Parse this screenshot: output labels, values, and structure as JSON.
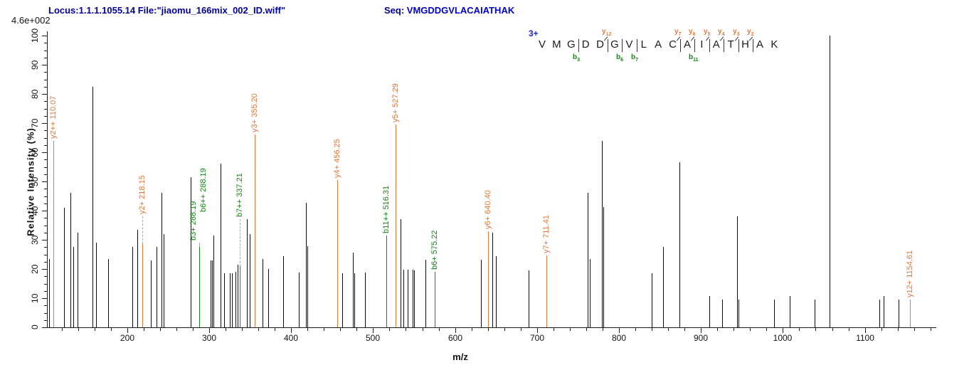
{
  "header": {
    "locus_file": "Locus:1.1.1.1055.14 File:\"jiaomu_166mix_002_ID.wiff\"",
    "seq_label": "Seq: ",
    "sequence": "VMGDDGVLACAIATHAK",
    "intensity_scale": "4.6e+002"
  },
  "axes": {
    "y_label": "Relative  Intensity  (%)",
    "x_label": "m/z",
    "y_ticks": [
      0,
      10,
      20,
      30,
      40,
      50,
      60,
      70,
      80,
      90,
      100
    ],
    "y_minor_step": 2.5,
    "x_ticks": [
      200,
      300,
      400,
      500,
      600,
      700,
      800,
      900,
      1000,
      1100
    ],
    "x_minor_step": 20,
    "x_min": 100,
    "x_max": 1186,
    "y_min": 0,
    "y_max": 100
  },
  "colors": {
    "y_ion": "#e0783c",
    "b_ion": "#168416",
    "peak": "#0d0d0d",
    "leader": "#a8a8a8",
    "header_blue": "#000099",
    "sequence_blue": "#0000cc",
    "charge_blue": "#2222cc"
  },
  "annotation": {
    "charge": "3+",
    "residues": "VMGDDGVLACAIATHAK",
    "y_fragments": [
      {
        "ion": "y",
        "sub": "12",
        "boundary": 5
      },
      {
        "ion": "y",
        "sub": "7",
        "boundary": 10
      },
      {
        "ion": "y",
        "sub": "6",
        "boundary": 11
      },
      {
        "ion": "y",
        "sub": "5",
        "boundary": 12
      },
      {
        "ion": "y",
        "sub": "4",
        "boundary": 13
      },
      {
        "ion": "y",
        "sub": "3",
        "boundary": 14
      },
      {
        "ion": "y",
        "sub": "2",
        "boundary": 15
      }
    ],
    "b_fragments": [
      {
        "ion": "b",
        "sub": "3",
        "boundary": 3
      },
      {
        "ion": "b",
        "sub": "6",
        "boundary": 6
      },
      {
        "ion": "b",
        "sub": "7",
        "boundary": 7
      },
      {
        "ion": "b",
        "sub": "11",
        "boundary": 11
      }
    ]
  },
  "chart_data": {
    "type": "bar",
    "subtype": "ms2-stick-spectrum",
    "xlabel": "m/z",
    "ylabel": "Relative Intensity (%)",
    "xlim": [
      100,
      1186
    ],
    "ylim": [
      0,
      100
    ],
    "grid": false,
    "max_intensity_label": "4.6e+002",
    "peaks": [
      {
        "mz": 105,
        "i": 23.5
      },
      {
        "mz": 110.07,
        "i": 64,
        "ion": "y",
        "label": "y2++ 110.07"
      },
      {
        "mz": 123,
        "i": 41
      },
      {
        "mz": 131,
        "i": 46
      },
      {
        "mz": 134,
        "i": 27.5
      },
      {
        "mz": 139,
        "i": 32.5
      },
      {
        "mz": 158,
        "i": 82.5
      },
      {
        "mz": 162,
        "i": 29
      },
      {
        "mz": 177,
        "i": 23.5
      },
      {
        "mz": 206,
        "i": 27.5
      },
      {
        "mz": 212,
        "i": 33.5
      },
      {
        "mz": 218.15,
        "i": 28.5,
        "ion": "y",
        "label": "y2+ 218.15",
        "label_from": 38
      },
      {
        "mz": 229,
        "i": 23
      },
      {
        "mz": 236,
        "i": 27.5
      },
      {
        "mz": 242,
        "i": 46
      },
      {
        "mz": 244.5,
        "i": 32
      },
      {
        "mz": 277,
        "i": 51.5
      },
      {
        "mz": 288.19,
        "i": 27.5,
        "ion": "b",
        "label": "b3+ 288.19",
        "label2": "b6++ 288.19",
        "label_from": 29
      },
      {
        "mz": 302,
        "i": 23
      },
      {
        "mz": 303.5,
        "i": 23
      },
      {
        "mz": 305.5,
        "i": 31.5
      },
      {
        "mz": 313.5,
        "i": 56
      },
      {
        "mz": 318,
        "i": 18.5
      },
      {
        "mz": 325,
        "i": 18.5
      },
      {
        "mz": 328,
        "i": 18.5
      },
      {
        "mz": 332,
        "i": 19
      },
      {
        "mz": 335,
        "i": 21.5
      },
      {
        "mz": 337.21,
        "i": 21,
        "ion": "b",
        "label": "b7++ 337.21",
        "label_from": 37
      },
      {
        "mz": 346,
        "i": 37
      },
      {
        "mz": 349.5,
        "i": 32
      },
      {
        "mz": 355.2,
        "i": 66,
        "ion": "y",
        "label": "y3+ 355.20"
      },
      {
        "mz": 365,
        "i": 23.5
      },
      {
        "mz": 372,
        "i": 20
      },
      {
        "mz": 390,
        "i": 24.5
      },
      {
        "mz": 409,
        "i": 18.7
      },
      {
        "mz": 418,
        "i": 42.7
      },
      {
        "mz": 419.5,
        "i": 27.7
      },
      {
        "mz": 456.25,
        "i": 50.5,
        "ion": "y",
        "label": "y4+ 456.25"
      },
      {
        "mz": 462,
        "i": 18.6
      },
      {
        "mz": 475,
        "i": 25.6
      },
      {
        "mz": 477,
        "i": 18.6
      },
      {
        "mz": 490,
        "i": 18.8
      },
      {
        "mz": 516.31,
        "i": 31.5,
        "ion": "b",
        "label": "b11++ 516.31"
      },
      {
        "mz": 527.29,
        "i": 69.5,
        "ion": "y",
        "label": "y5+ 527.29"
      },
      {
        "mz": 533.5,
        "i": 37
      },
      {
        "mz": 537,
        "i": 19.8
      },
      {
        "mz": 542,
        "i": 19.8
      },
      {
        "mz": 548,
        "i": 19.8
      },
      {
        "mz": 550,
        "i": 19.5
      },
      {
        "mz": 564,
        "i": 23.2
      },
      {
        "mz": 575.22,
        "i": 19,
        "ion": "b",
        "label": "b6+ 575.22"
      },
      {
        "mz": 632,
        "i": 23.2
      },
      {
        "mz": 640.4,
        "i": 33,
        "ion": "y",
        "label": "y6+ 640.40"
      },
      {
        "mz": 645.5,
        "i": 32.4
      },
      {
        "mz": 650,
        "i": 24.4
      },
      {
        "mz": 690,
        "i": 19.6
      },
      {
        "mz": 711.41,
        "i": 24.7,
        "ion": "y",
        "label": "y7+ 711.41"
      },
      {
        "mz": 762,
        "i": 46
      },
      {
        "mz": 764,
        "i": 23.3
      },
      {
        "mz": 779,
        "i": 64
      },
      {
        "mz": 781,
        "i": 41.2
      },
      {
        "mz": 840,
        "i": 18.6
      },
      {
        "mz": 854,
        "i": 27.6
      },
      {
        "mz": 874,
        "i": 56.6
      },
      {
        "mz": 910,
        "i": 10.7
      },
      {
        "mz": 926,
        "i": 9.4
      },
      {
        "mz": 944,
        "i": 38
      },
      {
        "mz": 946,
        "i": 9.4
      },
      {
        "mz": 989,
        "i": 9.4
      },
      {
        "mz": 1008,
        "i": 10.7
      },
      {
        "mz": 1039,
        "i": 9.4
      },
      {
        "mz": 1057,
        "i": 100
      },
      {
        "mz": 1118,
        "i": 9.4
      },
      {
        "mz": 1123,
        "i": 10.7
      },
      {
        "mz": 1141,
        "i": 9.4
      },
      {
        "mz": 1154.61,
        "i": 9.4,
        "ion": "y",
        "label": "y12+ 1154.61"
      }
    ]
  }
}
